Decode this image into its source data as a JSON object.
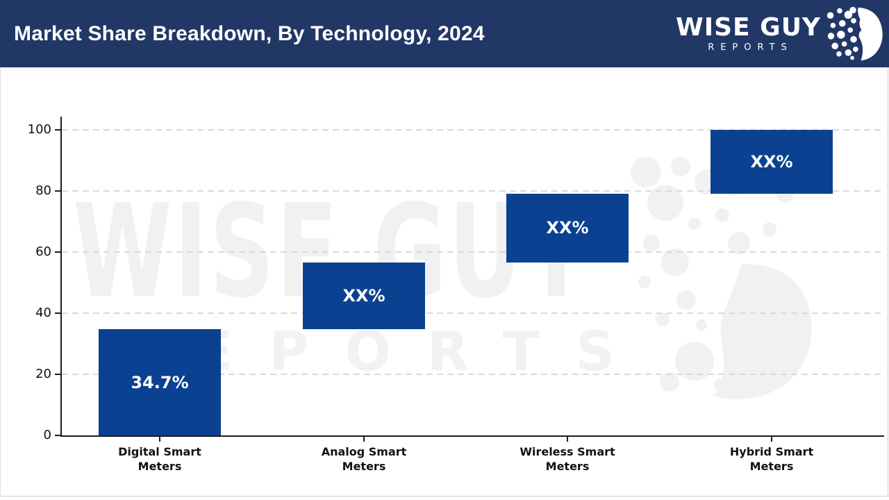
{
  "header": {
    "title": "Market Share Breakdown, By Technology, 2024",
    "logo": {
      "name": "WISE GUY",
      "sub": "REPORTS"
    }
  },
  "watermark": {
    "big": "WISE GUY",
    "sub": "REPORTS"
  },
  "chart_data": {
    "type": "bar",
    "variant": "waterfall",
    "title": "Market Share Breakdown, By Technology, 2024",
    "categories": [
      [
        "Digital Smart",
        "Meters"
      ],
      [
        "Analog Smart",
        "Meters"
      ],
      [
        "Wireless Smart",
        "Meters"
      ],
      [
        "Hybrid Smart",
        "Meters"
      ]
    ],
    "segments": [
      {
        "category": "Digital Smart Meters",
        "start": 0,
        "end": 34.7,
        "label": "34.7%"
      },
      {
        "category": "Analog Smart Meters",
        "start": 34.7,
        "end": 56.6,
        "label": "XX%"
      },
      {
        "category": "Wireless Smart Meters",
        "start": 56.6,
        "end": 79.2,
        "label": "XX%"
      },
      {
        "category": "Hybrid Smart Meters",
        "start": 79.2,
        "end": 100,
        "label": "XX%"
      }
    ],
    "yticks": [
      0,
      20,
      40,
      60,
      80,
      100
    ],
    "ylim": [
      0,
      100
    ],
    "xlabel": "",
    "ylabel": "",
    "legend": null,
    "grid": "horizontal-dashed",
    "bar_color": "#0a4291",
    "bar_label_color": "#ffffff"
  },
  "colors": {
    "header_bg": "#213866",
    "bar": "#0a4291",
    "grid": "#d9d9d9",
    "axis": "#1c1c1c",
    "watermark": "#f1f1f2",
    "frame": "#cfcfcf"
  }
}
